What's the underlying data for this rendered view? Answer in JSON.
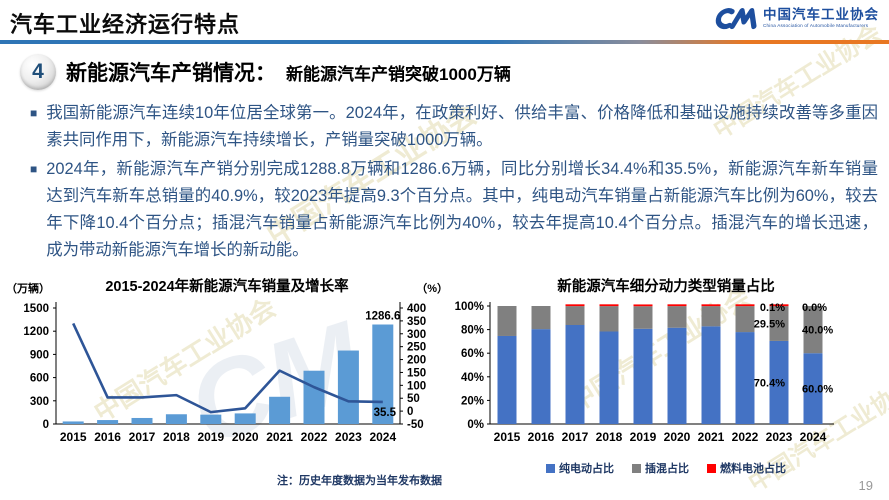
{
  "header": {
    "title": "汽车工业经济运行特点",
    "logo": {
      "org_cn": "中国汽车工业协会",
      "org_en": "China Association of Automobile Manufacturers",
      "brand_color": "#1d4e9e"
    }
  },
  "section": {
    "number": "4",
    "heading": "新能源汽车产销情况：",
    "subheading": "新能源汽车产销突破1000万辆"
  },
  "bullet_marker": "■",
  "bullets": [
    "我国新能源汽车连续10年位居全球第一。2024年，在政策利好、供给丰富、价格降低和基础设施持续改善等多重因素共同作用下，新能源汽车持续增长，产销量突破1000万辆。",
    "2024年，新能源汽车产销分别完成1288.8万辆和1286.6万辆，同比分别增长34.4%和35.5%，新能源汽车新车销量达到汽车新车总销量的40.9%，较2023年提高9.3个百分点。其中，纯电动汽车销量占新能源汽车比例为60%，较去年下降10.4个百分点；插混汽车销量占新能源汽车比例为40%，较去年提高10.4个百分点。插混汽车的增长迅速，成为带动新能源汽车增长的新动能。"
  ],
  "footnote": "注：历史年度数据为当年发布数据",
  "page_number": "19",
  "watermark": "中国汽车工业协会",
  "chart_data": [
    {
      "type": "bar+line",
      "title": "2015-2024年新能源汽车销量及增长率",
      "categories": [
        "2015",
        "2016",
        "2017",
        "2018",
        "2019",
        "2020",
        "2021",
        "2022",
        "2023",
        "2024"
      ],
      "series": [
        {
          "name": "销量",
          "render": "bar",
          "axis": "left",
          "unit": "万辆",
          "color": "#5b9bd5",
          "values": [
            33,
            51,
            78,
            126,
            121,
            137,
            352,
            689,
            950,
            1286.6
          ]
        },
        {
          "name": "增长率",
          "render": "line",
          "axis": "right",
          "unit": "%",
          "color": "#2e5597",
          "values": [
            340,
            53,
            53,
            62,
            -4,
            11,
            157,
            93,
            38,
            35.5
          ]
        }
      ],
      "left_axis": {
        "label": "（万辆）",
        "min": 0,
        "max": 1500,
        "step": 300
      },
      "right_axis": {
        "label": "（%）",
        "min": -50,
        "max": 400,
        "step": 50
      },
      "grid": false,
      "legend": "none",
      "data_labels": [
        {
          "series_index": 0,
          "cat_index": 9,
          "label": "1286.6"
        },
        {
          "series_index": 1,
          "cat_index": 9,
          "label": "35.5"
        }
      ]
    },
    {
      "type": "stacked-bar",
      "title": "新能源汽车细分动力类型销量占比",
      "categories": [
        "2015",
        "2016",
        "2017",
        "2018",
        "2019",
        "2020",
        "2021",
        "2022",
        "2023",
        "2024"
      ],
      "series": [
        {
          "name": "纯电动占比",
          "color": "#4472c4",
          "values": [
            74.6,
            80.4,
            83.9,
            78.4,
            80.7,
            81.6,
            82.8,
            77.9,
            70.4,
            60.0
          ]
        },
        {
          "name": "插混占比",
          "color": "#808080",
          "values": [
            25.4,
            19.6,
            16.0,
            21.5,
            19.1,
            18.3,
            17.1,
            22.0,
            29.5,
            40.0
          ]
        },
        {
          "name": "燃料电池占比",
          "color": "#ff0000",
          "values": [
            0.0,
            0.0,
            0.1,
            0.1,
            0.2,
            0.1,
            0.1,
            0.1,
            0.1,
            0.0
          ]
        }
      ],
      "y_axis": {
        "min": 0,
        "max": 100,
        "step": 20,
        "suffix": "%"
      },
      "grid": false,
      "legend": "bottom",
      "annotations": [
        {
          "cat_index": 8,
          "series_index": 2,
          "label": "0.1%",
          "side": "left"
        },
        {
          "cat_index": 8,
          "series_index": 1,
          "label": "29.5%",
          "side": "left"
        },
        {
          "cat_index": 8,
          "series_index": 0,
          "label": "70.4%",
          "side": "left"
        },
        {
          "cat_index": 9,
          "series_index": 2,
          "label": "0.0%",
          "side": "right"
        },
        {
          "cat_index": 9,
          "series_index": 1,
          "label": "40.0%",
          "side": "right"
        },
        {
          "cat_index": 9,
          "series_index": 0,
          "label": "60.0%",
          "side": "right"
        }
      ]
    }
  ]
}
